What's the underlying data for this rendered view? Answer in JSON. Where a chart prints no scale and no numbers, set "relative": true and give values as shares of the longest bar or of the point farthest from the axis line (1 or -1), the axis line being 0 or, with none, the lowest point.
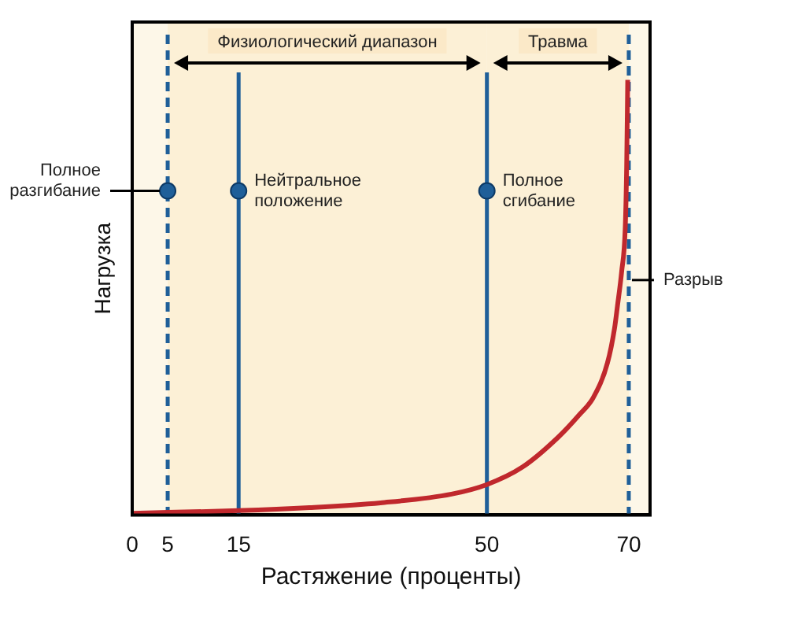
{
  "chart_data": {
    "type": "line",
    "xlabel": "Растяжение (проценты)",
    "ylabel": "Нагрузка",
    "relative": true,
    "tick_labels": "x",
    "xlim": [
      0,
      73
    ],
    "xticks": [
      0,
      5,
      15,
      50,
      70
    ],
    "grid": false,
    "legend": false,
    "series": [
      {
        "color": "#c0282d",
        "marker": "none",
        "x": [
          0,
          5,
          15,
          25,
          35,
          45,
          50,
          55,
          60,
          63,
          65,
          67,
          68,
          68.4,
          69,
          69.5,
          69.7,
          69.85
        ],
        "values": [
          0.004,
          0.006,
          0.01,
          0.017,
          0.028,
          0.048,
          0.07,
          0.11,
          0.178,
          0.23,
          0.27,
          0.35,
          0.43,
          0.48,
          0.56,
          0.66,
          0.8,
          1
        ]
      },
      {
        "type": "scatter",
        "color": "#1f5f99",
        "marker": "circle",
        "x": [
          5,
          15,
          50
        ],
        "values": [
          0.745,
          0.745,
          0.745
        ]
      }
    ],
    "ref_lines": [
      {
        "axis": "x",
        "value": 5,
        "color": "#1f5f99",
        "line_style": "dashed"
      },
      {
        "axis": "x",
        "value": 15,
        "color": "#1f5f99",
        "line_style": "solid"
      },
      {
        "axis": "x",
        "value": 50,
        "color": "#1f5f99",
        "line_style": "solid"
      },
      {
        "axis": "x",
        "value": 70,
        "color": "#1f5f99",
        "line_style": "dashed"
      }
    ],
    "bands": [
      {
        "axis": "x",
        "from": 5,
        "to": 50,
        "label": "Физиологический диапазон",
        "color": "#fcf0d6"
      },
      {
        "axis": "x",
        "from": 50,
        "to": 70,
        "label": "Травма",
        "color": "#fcf0d6"
      }
    ],
    "annotations": [
      {
        "text": "Полное\nразгибание",
        "x": 5,
        "y": 0.745
      },
      {
        "text": "Нейтральное\nположение",
        "x": 15,
        "y": 0.745
      },
      {
        "text": "Полное\nсгибание",
        "x": 50,
        "y": 0.745
      },
      {
        "text": "Разрыв",
        "x": 70,
        "y": 0.54
      }
    ]
  }
}
